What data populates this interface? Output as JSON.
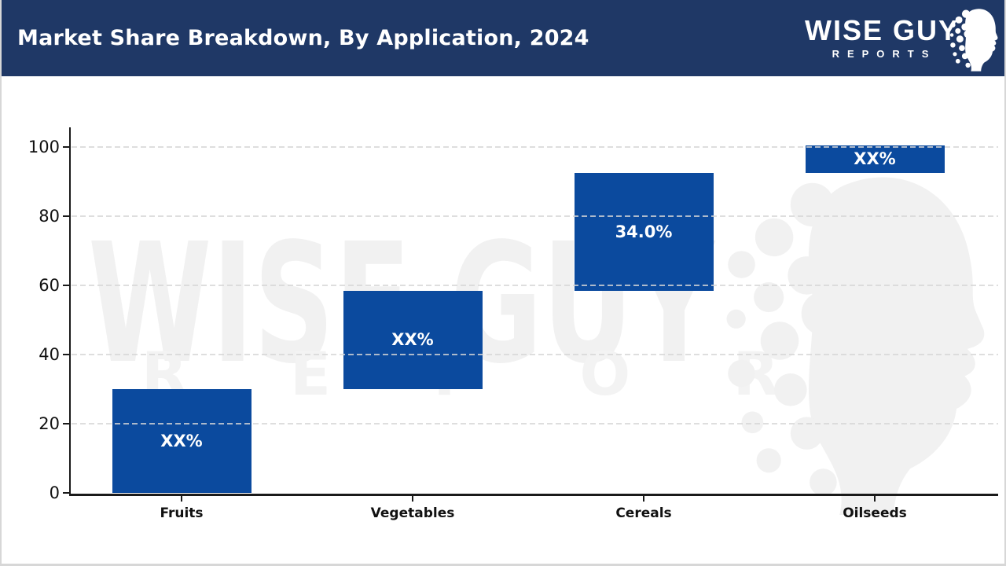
{
  "header": {
    "title": "Market Share Breakdown, By Application, 2024",
    "background_color": "#1F3866",
    "logo": {
      "line1": "WISE GUY",
      "line2": "REPORTS"
    }
  },
  "watermark": {
    "line1": "WISE GUY",
    "line2": "R E P O R T S"
  },
  "chart_data": {
    "type": "bar",
    "subtype": "waterfall",
    "title": "",
    "xlabel": "",
    "ylabel": "",
    "categories": [
      "Fruits",
      "Vegetables",
      "Cereals",
      "Oilseeds"
    ],
    "segments": [
      {
        "category": "Fruits",
        "start": 0,
        "end": 30,
        "value_label": "XX%"
      },
      {
        "category": "Vegetables",
        "start": 30,
        "end": 58.5,
        "value_label": "XX%"
      },
      {
        "category": "Cereals",
        "start": 58.5,
        "end": 92.5,
        "value_label": "34.0%"
      },
      {
        "category": "Oilseeds",
        "start": 92.5,
        "end": 100.5,
        "value_label": "XX%"
      }
    ],
    "yticks": [
      0,
      20,
      40,
      60,
      80,
      100
    ],
    "ylim": [
      0,
      105.7
    ],
    "grid": "horizontal-dashed",
    "legend": "none",
    "bar_color": "#0B4A9E",
    "bar_label_color": "#ffffff",
    "axis_color": "#1a1a1a",
    "gridline_color": "#d6d6d6"
  }
}
